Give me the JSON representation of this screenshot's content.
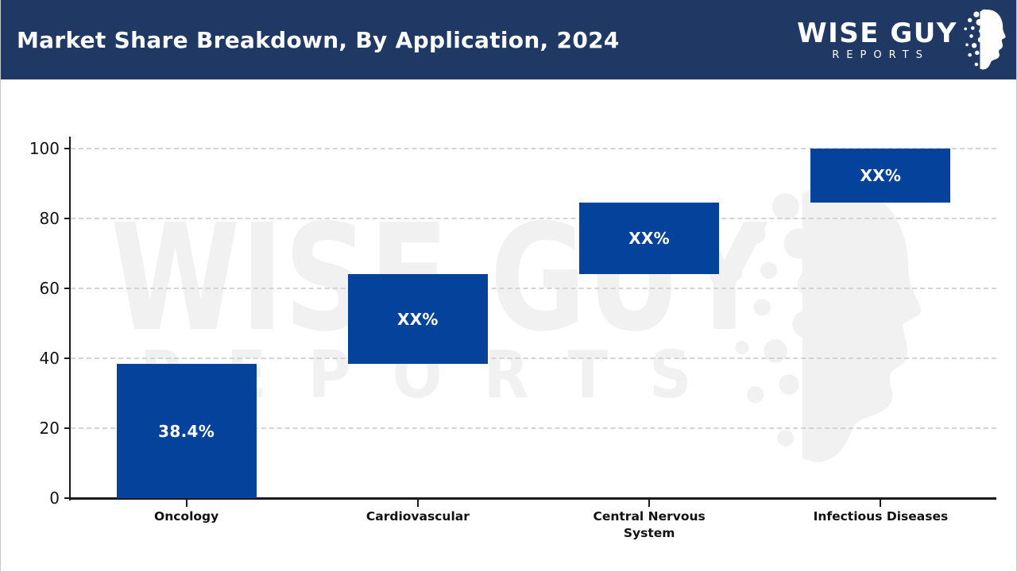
{
  "header": {
    "title": "Market Share Breakdown, By Application, 2024",
    "logo_line1": "WISE GUY",
    "logo_line2": "REPORTS"
  },
  "watermark": {
    "line1": "WISE GUY",
    "line2": "REPORTS"
  },
  "chart_data": {
    "type": "bar",
    "variant": "waterfall-floating-bars",
    "title": "Market Share Breakdown, By Application, 2024",
    "categories": [
      "Oncology",
      "Cardiovascular",
      "Central Nervous System",
      "Infectious Diseases"
    ],
    "segments": [
      {
        "category": "Oncology",
        "start": 0,
        "end": 38.4,
        "label": "38.4%"
      },
      {
        "category": "Cardiovascular",
        "start": 38.4,
        "end": 64,
        "label": "XX%"
      },
      {
        "category": "Central Nervous System",
        "start": 64,
        "end": 84.6,
        "label": "XX%"
      },
      {
        "category": "Infectious Diseases",
        "start": 84.6,
        "end": 100,
        "label": "XX%"
      }
    ],
    "ylim": [
      0,
      100
    ],
    "yticks": [
      0,
      20,
      40,
      60,
      80,
      100
    ],
    "xlabel": "",
    "ylabel": "",
    "grid": "horizontal-dashed",
    "legend": "none",
    "colors": {
      "bar": "#05429b",
      "bar_label": "#ffffff",
      "axis": "#1a1a1a",
      "grid": "#d4d4d4",
      "header_bg": "#1f3864",
      "tick_label": "#141414",
      "watermark": "#f1f1f1"
    }
  }
}
